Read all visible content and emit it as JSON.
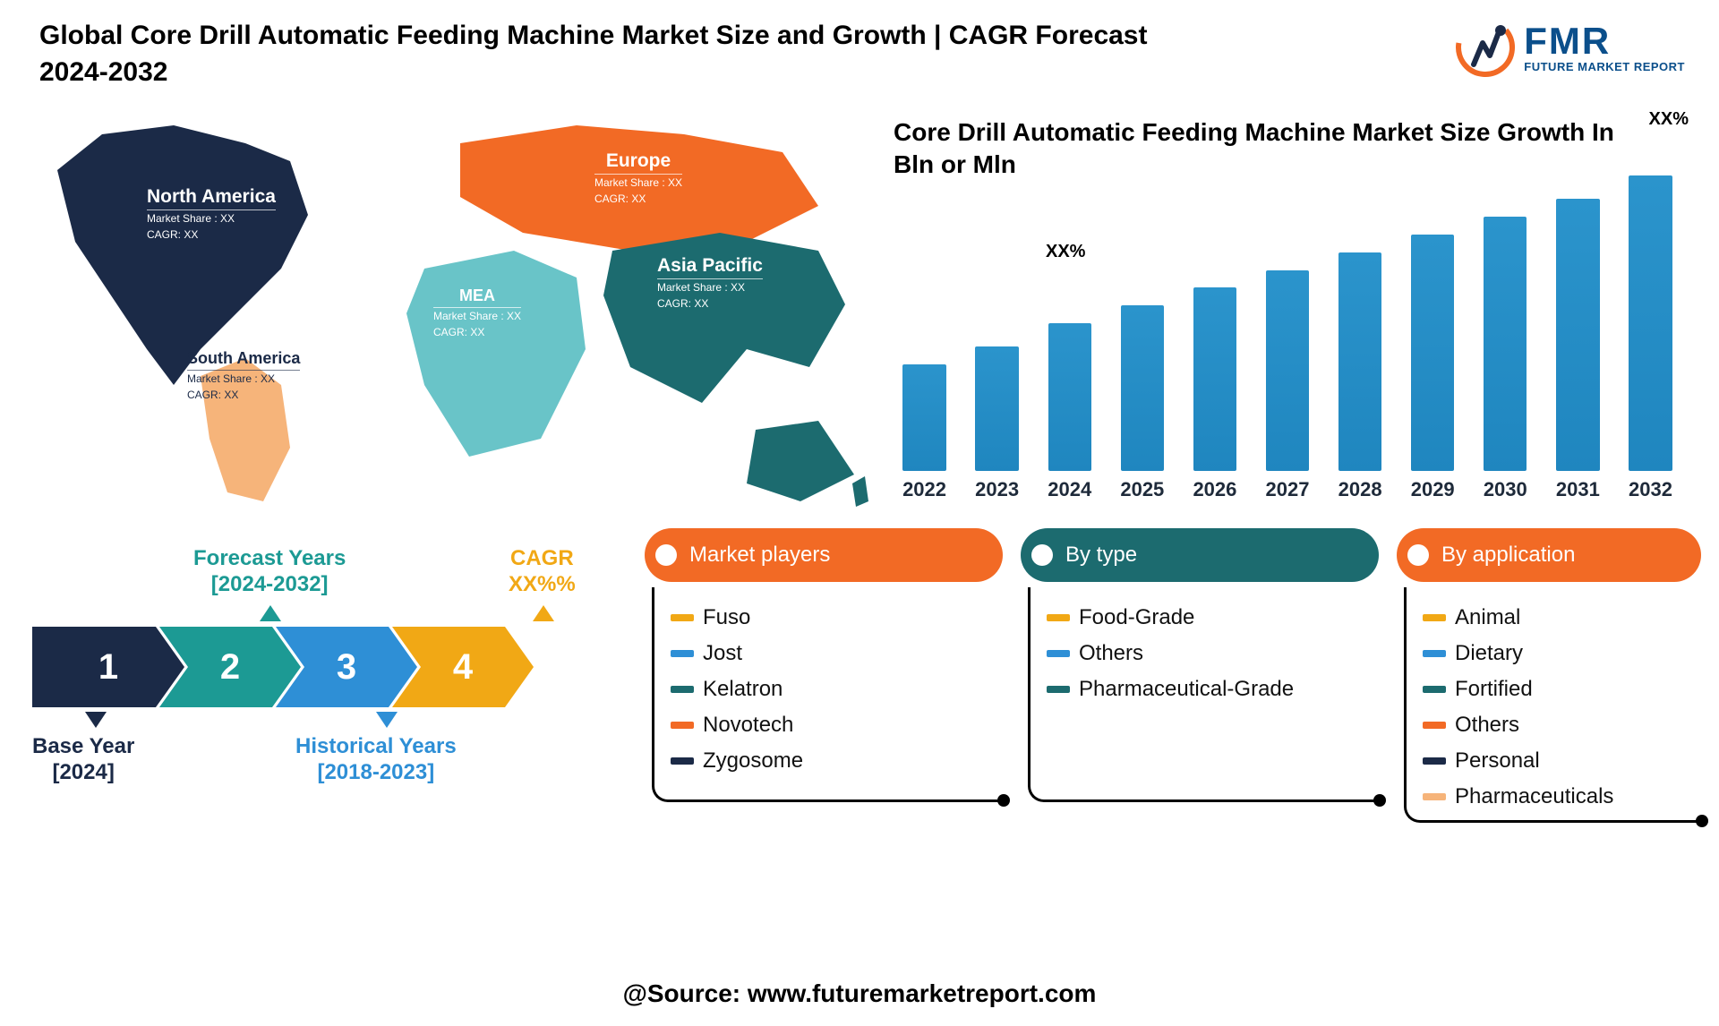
{
  "title": "Global Core Drill Automatic Feeding Machine Market Size and Growth | CAGR Forecast 2024-2032",
  "logo": {
    "main": "FMR",
    "sub": "FUTURE MARKET REPORT",
    "icon_accent": "#f26a25",
    "icon_dark": "#1b2a47",
    "text_color": "#0b4f8b"
  },
  "map": {
    "regions": [
      {
        "key": "na",
        "name": "North America",
        "share": "Market Share : XX",
        "cagr": "CAGR: XX",
        "color": "#1b2a47"
      },
      {
        "key": "sa",
        "name": "South America",
        "share": "Market Share : XX",
        "cagr": "CAGR: XX",
        "color": "#f6b47a"
      },
      {
        "key": "eu",
        "name": "Europe",
        "share": "Market Share : XX",
        "cagr": "CAGR: XX",
        "color": "#f26a25"
      },
      {
        "key": "mea",
        "name": "MEA",
        "share": "Market Share : XX",
        "cagr": "CAGR: XX",
        "color": "#69c4c8"
      },
      {
        "key": "ap",
        "name": "Asia Pacific",
        "share": "Market Share : XX",
        "cagr": "CAGR: XX",
        "color": "#1c6b6f"
      }
    ]
  },
  "chart": {
    "title": "Core Drill Automatic Feeding Machine Market Size Growth In\nBln or Mln",
    "type": "bar",
    "years": [
      "2022",
      "2023",
      "2024",
      "2025",
      "2026",
      "2027",
      "2028",
      "2029",
      "2030",
      "2031",
      "2032"
    ],
    "values": [
      36,
      42,
      50,
      56,
      62,
      68,
      74,
      80,
      86,
      92,
      100
    ],
    "bar_color_1": "#2b94cc",
    "bar_color_2": "#1f86bf",
    "label_color": "#1e2a3a",
    "label_fontsize": 22,
    "anno_2024": "XX%",
    "anno_2032": "XX%"
  },
  "timeline": {
    "items": [
      {
        "num": "1",
        "label": "Base Year\n[2024]",
        "color": "#1b2a47",
        "label_color": "#1b2a47",
        "pos": "below"
      },
      {
        "num": "2",
        "label": "Forecast Years\n[2024-2032]",
        "color": "#1c9a94",
        "label_color": "#1c9a94",
        "pos": "above"
      },
      {
        "num": "3",
        "label": "Historical Years\n[2018-2023]",
        "color": "#2e8fd6",
        "label_color": "#2e8fd6",
        "pos": "below"
      },
      {
        "num": "4",
        "label": "CAGR\nXX%%",
        "color": "#f1a815",
        "label_color": "#f1a815",
        "pos": "above"
      }
    ]
  },
  "sections": {
    "palette": [
      "#f1a815",
      "#2e8fd6",
      "#1c6b6f",
      "#f26a25",
      "#1b2a47",
      "#f6b47a"
    ],
    "market_players": {
      "title": "Market players",
      "head_color": "#f26a25",
      "dot_inner": "#f26a25",
      "items": [
        "Fuso",
        "Jost",
        "Kelatron",
        "Novotech",
        "Zygosome"
      ]
    },
    "by_type": {
      "title": "By type",
      "head_color": "#1c6b6f",
      "dot_inner": "#1c6b6f",
      "items": [
        "Food-Grade",
        "Others",
        "Pharmaceutical-Grade"
      ]
    },
    "by_application": {
      "title": "By application",
      "head_color": "#f26a25",
      "dot_inner": "#f26a25",
      "items": [
        "Animal",
        "Dietary",
        "Fortified",
        "Others",
        "Personal",
        "Pharmaceuticals"
      ]
    }
  },
  "source": "@Source: www.futuremarketreport.com"
}
